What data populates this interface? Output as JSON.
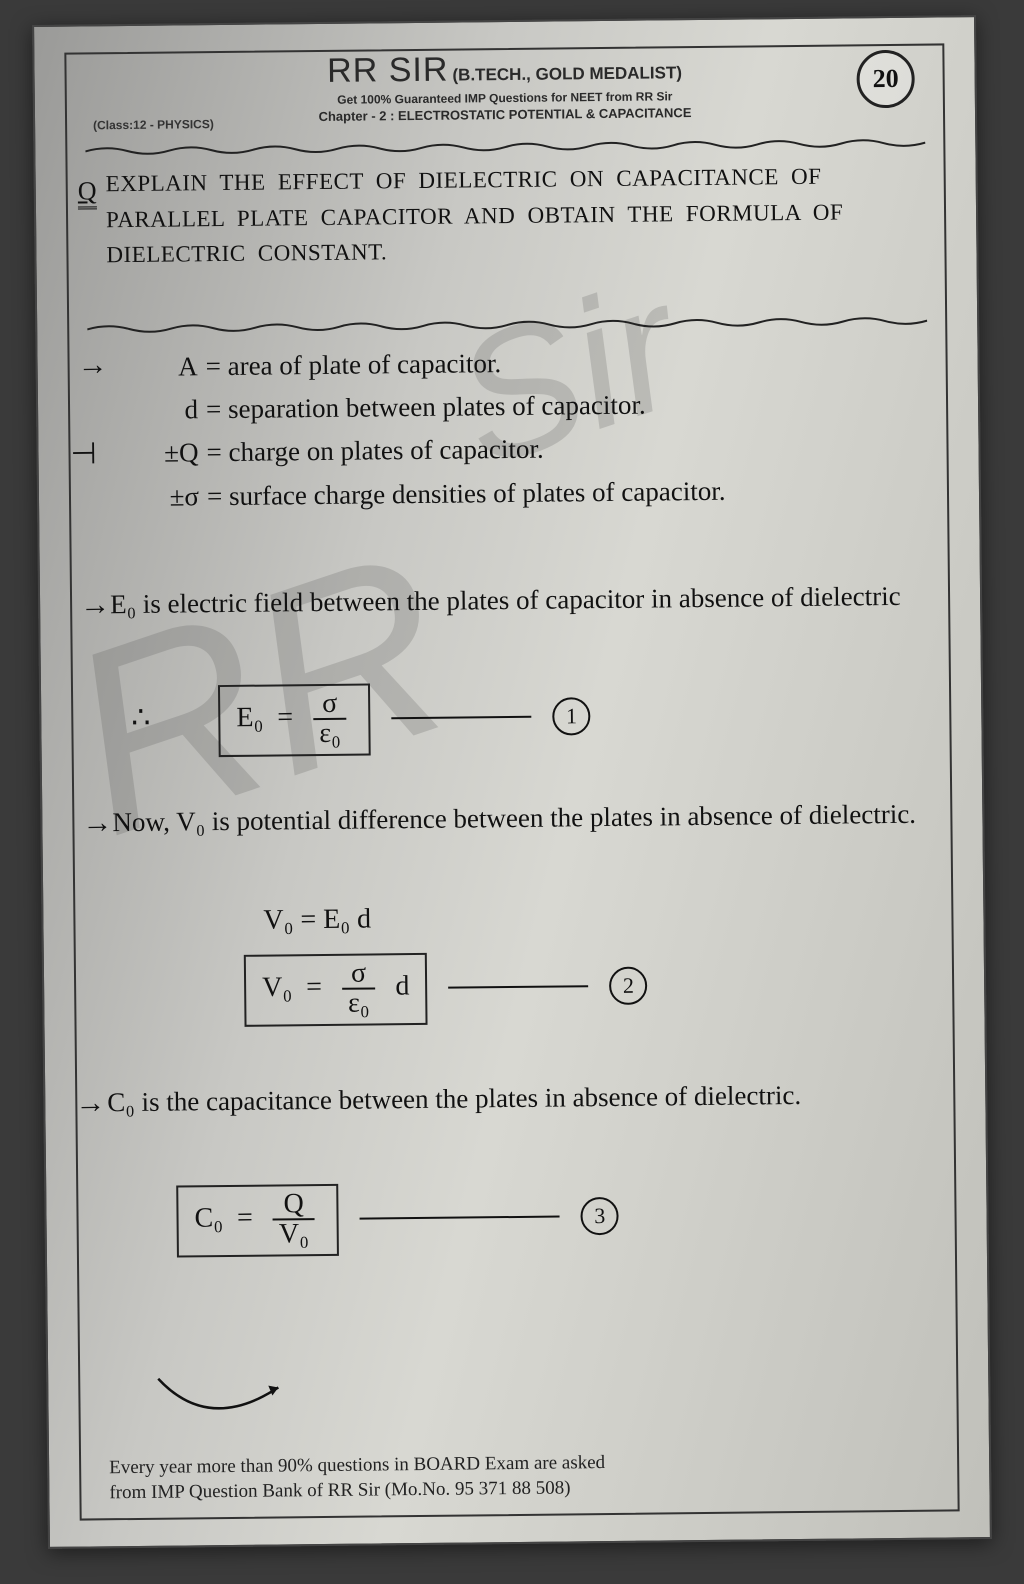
{
  "page_number": "20",
  "header": {
    "brand": "RR SIR",
    "brand_sub": "(B.TECH., GOLD MEDALIST)",
    "guarantee": "Get 100% Guaranteed IMP Questions for NEET from RR Sir",
    "class": "(Class:12 - PHYSICS)",
    "chapter": "Chapter - 2 : ELECTROSTATIC POTENTIAL & CAPACITANCE"
  },
  "question": {
    "label": "Q",
    "text": "Explain the effect of dielectric on capacitance of parallel plate capacitor and obtain the formula of dielectric constant."
  },
  "definitions": [
    {
      "sym": "A",
      "txt": "area of plate of capacitor."
    },
    {
      "sym": "d",
      "txt": "separation between plates of capacitor."
    },
    {
      "sym": "±Q",
      "txt": "charge on plates of capacitor."
    },
    {
      "sym": "±σ",
      "txt": "surface charge densities of plates of capacitor."
    }
  ],
  "para_e0": "E₀ is electric field between the plates of capacitor in absence of dielectric",
  "eq1": {
    "lhs": "E₀",
    "num": "σ",
    "den": "ε₀",
    "tag": "1"
  },
  "para_v0": "Now, V₀ is potential difference between the plates in absence of dielectric.",
  "eq_v_plain": "V₀ = E₀ d",
  "eq2": {
    "lhs": "V₀",
    "num": "σ",
    "den": "ε₀",
    "tail": "d",
    "tag": "2"
  },
  "para_c0": "C₀ is the capacitance between the plates in absence of dielectric.",
  "eq3": {
    "lhs": "C₀",
    "num": "Q",
    "den": "V₀",
    "tag": "3"
  },
  "footer_l1": "Every year more than 90% questions in BOARD Exam are asked",
  "footer_l2": "from IMP Question Bank of RR Sir (Mo.No. 95 371 88 508)",
  "watermark": {
    "big": "RR",
    "small": "Sir"
  }
}
